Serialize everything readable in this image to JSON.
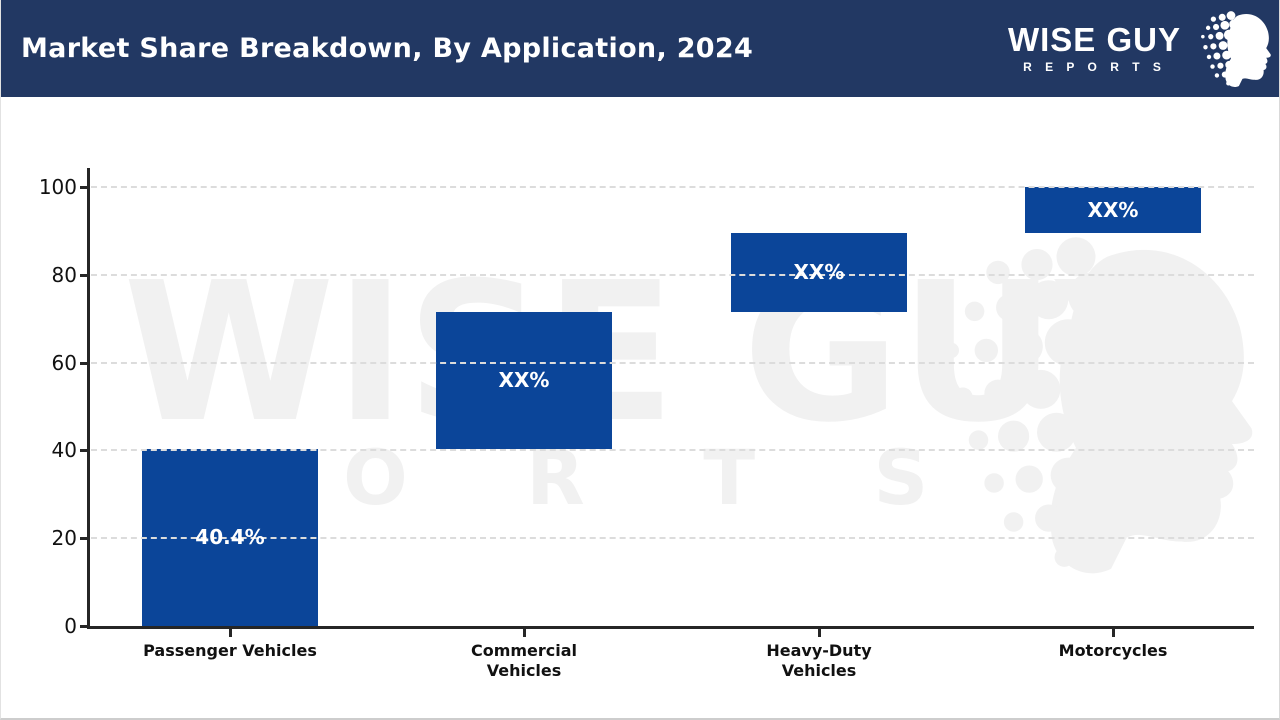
{
  "header": {
    "title": "Market Share Breakdown, By Application, 2024",
    "logo": {
      "line1": "WISE GUY",
      "line2": "R E P O R T S"
    }
  },
  "watermark": {
    "line1": "WISE GUY",
    "line2": "P O R T S"
  },
  "chart_data": {
    "type": "bar",
    "subtype": "waterfall-floating-bars",
    "title": "Market Share Breakdown, By Application, 2024",
    "categories": [
      "Passenger Vehicles",
      "Commercial Vehicles",
      "Heavy-Duty Vehicles",
      "Motorcycles"
    ],
    "tick_labels": [
      "Passenger Vehicles",
      "Commercial\nVehicles",
      "Heavy-Duty\nVehicles",
      "Motorcycles"
    ],
    "values": [
      40.4,
      31.2,
      18.0,
      10.4
    ],
    "cumulative_start": [
      0,
      40.4,
      71.6,
      89.6
    ],
    "cumulative_end": [
      40.4,
      71.6,
      89.6,
      100
    ],
    "bar_labels": [
      "40.4%",
      "XX%",
      "XX%",
      "XX%"
    ],
    "xlabel": "",
    "ylabel": "",
    "ylim": [
      0,
      100
    ],
    "yticks": [
      0,
      20,
      40,
      60,
      80,
      100
    ],
    "grid": "horizontal-dashed",
    "legend": "none",
    "bar_color": "#0b4599",
    "label_color": "#ffffff",
    "header_color": "#223863"
  }
}
